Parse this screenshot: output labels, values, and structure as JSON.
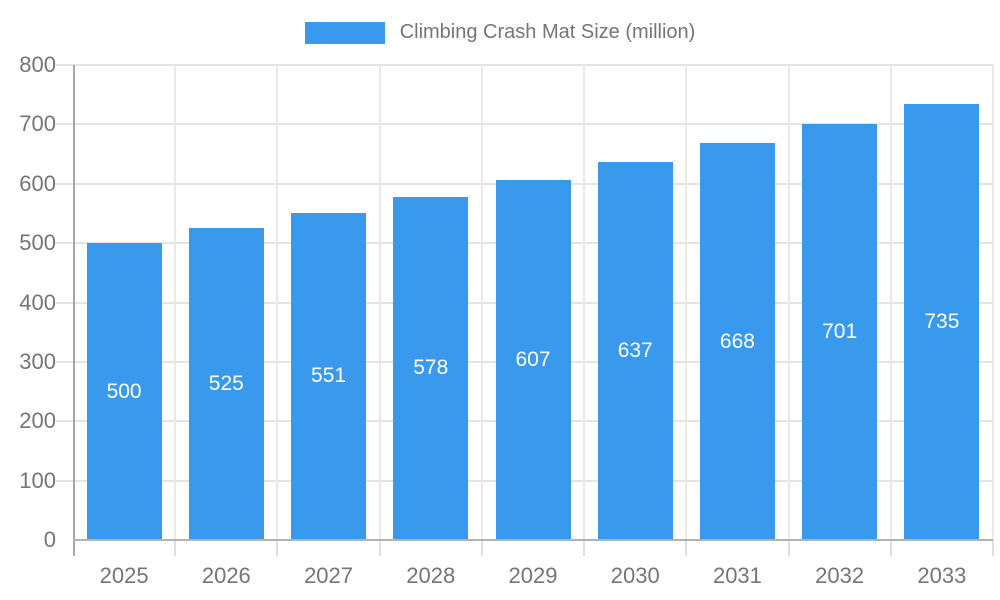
{
  "chart_data": {
    "type": "bar",
    "title": "Climbing Crash Mat Size (million)",
    "categories": [
      "2025",
      "2026",
      "2027",
      "2028",
      "2029",
      "2030",
      "2031",
      "2032",
      "2033"
    ],
    "values": [
      500,
      525,
      551,
      578,
      607,
      637,
      668,
      701,
      735
    ],
    "xlabel": "",
    "ylabel": "",
    "ylim": [
      0,
      800
    ],
    "ytick_step": 100,
    "ytick_labels": [
      "0",
      "100",
      "200",
      "300",
      "400",
      "500",
      "600",
      "700",
      "800"
    ],
    "grid": true,
    "legend_position": "top-center",
    "colors": {
      "bar": "#3999EC",
      "value_label": "#FFFFFF",
      "axis_text": "#757575",
      "grid": "#E4E4E4",
      "grid_light": "#E9E9E9",
      "tick": "#DFDFDF",
      "axis_line": "#A8A8A8",
      "baseline": "#B2B2B2"
    }
  }
}
